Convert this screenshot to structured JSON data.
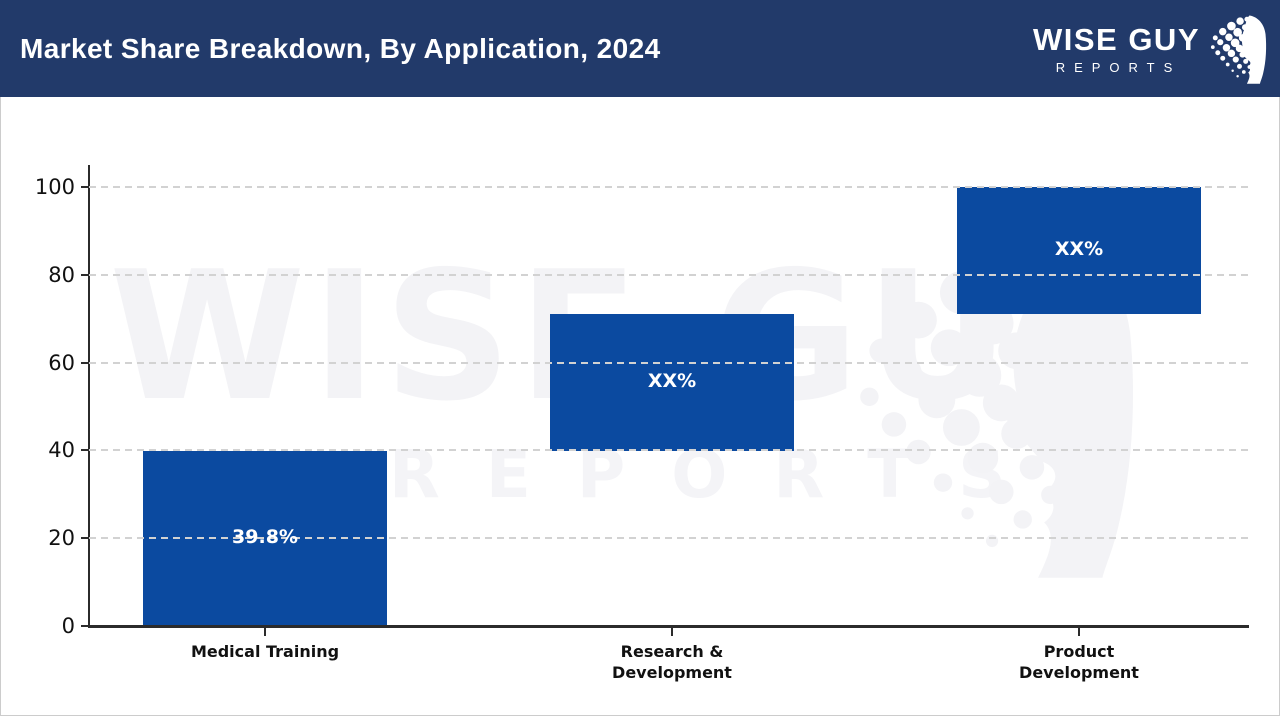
{
  "header": {
    "title": "Market Share Breakdown, By Application, 2024",
    "logo": {
      "line1": "WISE GUY",
      "line2": "REPORTS"
    }
  },
  "watermark": {
    "line1": "WISE GUY",
    "line2": "REPORTS"
  },
  "chart_data": {
    "type": "bar",
    "variant": "floating-waterfall",
    "title": "Market Share Breakdown, By Application, 2024",
    "categories": [
      "Medical Training",
      "Research &\nDevelopment",
      "Product\nDevelopment"
    ],
    "bars": [
      {
        "category": "Medical Training",
        "start": 0,
        "end": 39.8,
        "label": "39.8%"
      },
      {
        "category": "Research & Development",
        "start": 39.8,
        "end": 71,
        "label": "XX%"
      },
      {
        "category": "Product Development",
        "start": 71,
        "end": 100,
        "label": "XX%"
      }
    ],
    "ylim": [
      0,
      100
    ],
    "yticks": [
      0,
      20,
      40,
      60,
      80,
      100
    ],
    "xlabel": "",
    "ylabel": "",
    "grid": "horizontal-dashed",
    "legend": "none",
    "bar_color": "#0b4aa0",
    "bar_label_color": "#ffffff"
  },
  "colors": {
    "header_bg": "#223a6a",
    "bar": "#0b4aa0",
    "gridline": "#d2d2d2",
    "axis": "#2b2b2b",
    "watermark": "#f3f3f6",
    "border": "#cccccc"
  }
}
